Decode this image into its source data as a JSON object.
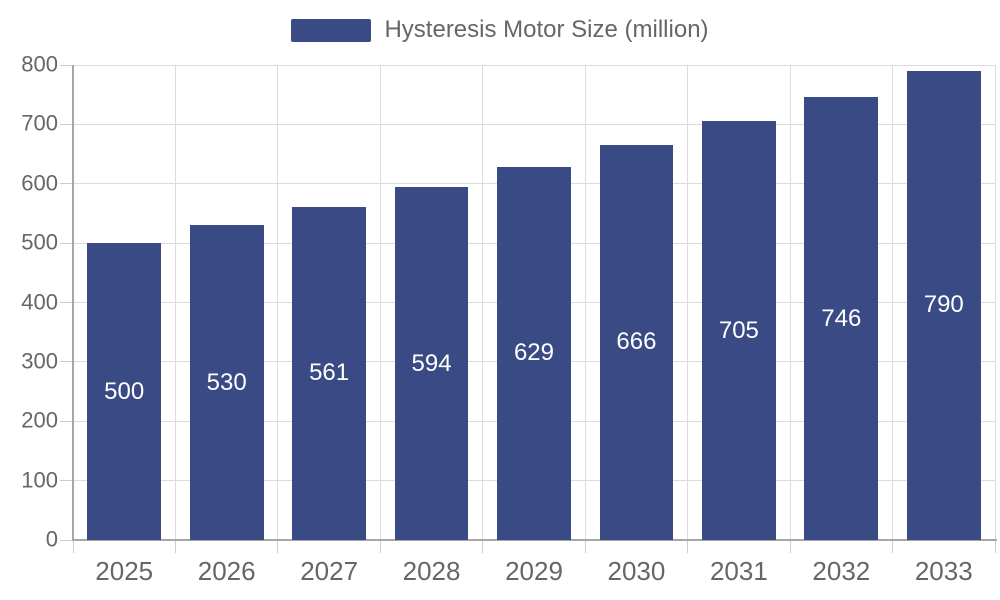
{
  "chart_data": {
    "type": "bar",
    "categories": [
      "2025",
      "2026",
      "2027",
      "2028",
      "2029",
      "2030",
      "2031",
      "2032",
      "2033"
    ],
    "series": [
      {
        "name": "Hysteresis Motor Size (million)",
        "color": "#3a4a84",
        "values": [
          500,
          530,
          561,
          594,
          629,
          666,
          705,
          746,
          790
        ]
      }
    ],
    "value_labels": [
      500,
      530,
      561,
      594,
      629,
      666,
      705,
      746,
      790
    ],
    "value_label_position": "inside-middle",
    "yticks": [
      0,
      100,
      200,
      300,
      400,
      500,
      600,
      700,
      800
    ],
    "ylim": [
      0,
      800
    ],
    "xlabel": "",
    "ylabel": "",
    "grid": true,
    "legend_position": "top-center",
    "colors": {
      "bar": "#3a4a84",
      "axis_line": "#a6a6a6",
      "gridline": "#dcdcdc",
      "tick": "#cccccc",
      "axis_text": "#666666",
      "legend_text": "#666666",
      "value_label_text": "#ffffff",
      "background": "#ffffff"
    }
  }
}
